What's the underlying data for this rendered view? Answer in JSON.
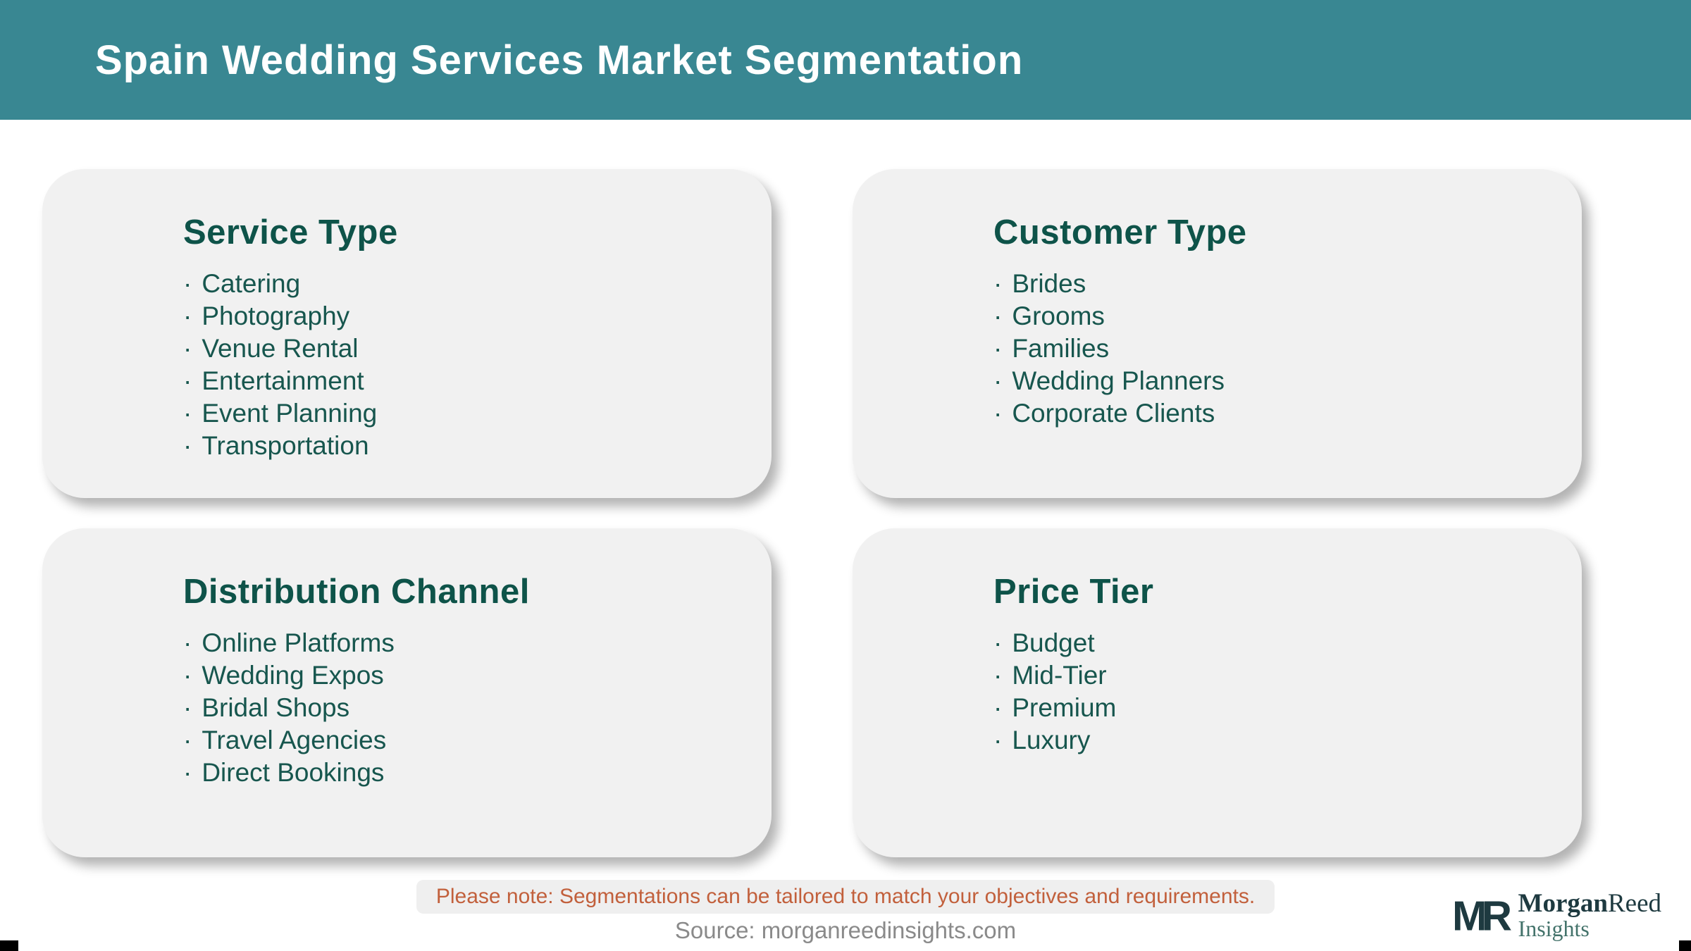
{
  "header": {
    "title": "Spain Wedding Services Market Segmentation"
  },
  "cards": [
    {
      "title": "Service Type",
      "items": [
        "Catering",
        "Photography",
        "Venue Rental",
        "Entertainment",
        "Event Planning",
        "Transportation"
      ]
    },
    {
      "title": "Customer Type",
      "items": [
        "Brides",
        "Grooms",
        "Families",
        "Wedding Planners",
        "Corporate Clients"
      ]
    },
    {
      "title": "Distribution Channel",
      "items": [
        "Online Platforms",
        "Wedding Expos",
        "Bridal Shops",
        "Travel Agencies",
        "Direct Bookings"
      ]
    },
    {
      "title": "Price Tier",
      "items": [
        "Budget",
        "Mid-Tier",
        "Premium",
        "Luxury"
      ]
    }
  ],
  "footer": {
    "note": "Please note: Segmentations can be tailored to match your objectives and requirements.",
    "source": "Source: morganreedinsights.com"
  },
  "logo": {
    "monogram": "MR",
    "name_bold": "Morgan",
    "name_regular": "Reed",
    "tagline": "Insights"
  },
  "colors": {
    "header_teal": "#398792",
    "card_gray": "#F1F1F1",
    "heading_green": "#0E5349",
    "item_green": "#17564E",
    "note_orange": "#C2603C",
    "source_gray": "#8A8A8A",
    "logo_navy": "#1E3A40",
    "logo_teal": "#44736B"
  }
}
